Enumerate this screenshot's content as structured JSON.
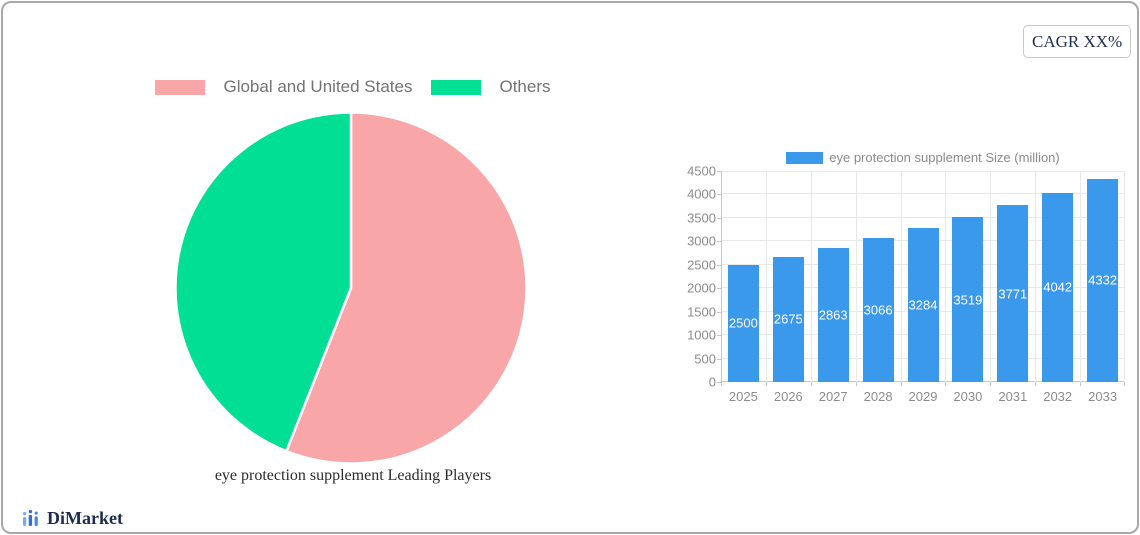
{
  "badge": {
    "label": "CAGR XX%"
  },
  "logo": {
    "text": "DiMarket"
  },
  "chart_data": [
    {
      "type": "pie",
      "title": "eye protection supplement Leading Players",
      "legend_position": "top",
      "slices": [
        {
          "label": "Global and United States",
          "value": 56,
          "color": "#F9A6A9"
        },
        {
          "label": "Others",
          "value": 44,
          "color": "#00DF93"
        }
      ]
    },
    {
      "type": "bar",
      "title": "eye protection supplement Size (million)",
      "categories": [
        "2025",
        "2026",
        "2027",
        "2028",
        "2029",
        "2030",
        "2031",
        "2032",
        "2033"
      ],
      "values": [
        2500,
        2675,
        2863,
        3066,
        3284,
        3519,
        3771,
        4042,
        4332
      ],
      "ylim": [
        0,
        4500
      ],
      "ytick_step": 500,
      "bar_color": "#3b99eb",
      "grid": true,
      "legend_position": "top",
      "value_labels": "inside-white"
    }
  ],
  "colors": {
    "pie_pink": "#F9A6A9",
    "pie_green": "#00DF93",
    "bar_blue": "#3b99eb",
    "axis_text": "#8c8c8c",
    "card_border": "#a9a9a9",
    "badge_text": "#1f3054"
  }
}
